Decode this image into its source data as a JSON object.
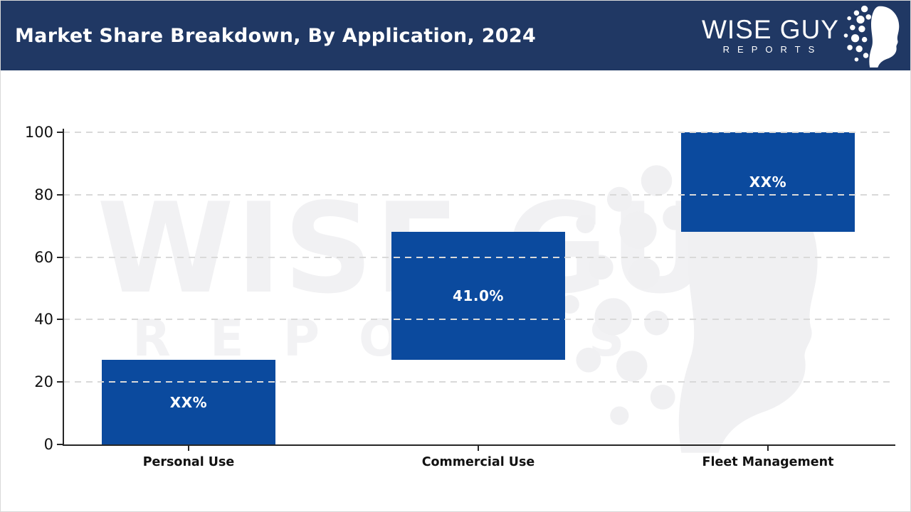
{
  "colors": {
    "header_bg": "#203864",
    "bar_blue": "#0b4a9e",
    "axis": "#262626",
    "gridline": "#d9d9d9",
    "watermark": "#f0f0f2",
    "bar_label_text": "#ffffff"
  },
  "header": {
    "title": "Market Share Breakdown, By Application, 2024",
    "logo": {
      "line1": "WISE GUY",
      "line2": "REPORTS"
    }
  },
  "watermark": {
    "line1": "WISE GUY",
    "line2": "REPORTS"
  },
  "chart_data": {
    "type": "bar",
    "variant": "floating-segment waterfall (stacked market share)",
    "title": "Market Share Breakdown, By Application, 2024",
    "categories": [
      "Personal Use",
      "Commercial Use",
      "Fleet Management"
    ],
    "segments": [
      {
        "category": "Personal Use",
        "start": 0,
        "end": 27,
        "value_label": "XX%"
      },
      {
        "category": "Commercial Use",
        "start": 27,
        "end": 68,
        "value_label": "41.0%"
      },
      {
        "category": "Fleet Management",
        "start": 68,
        "end": 100,
        "value_label": "XX%"
      }
    ],
    "yticks": [
      0,
      20,
      40,
      60,
      80,
      100
    ],
    "ylim": [
      0,
      101
    ],
    "xlabel": "",
    "ylabel": "",
    "grid": "horizontal dashed gridlines drawn over bars",
    "legend": "none",
    "bar_color": "#0b4a9e",
    "bar_label_color": "#ffffff"
  }
}
